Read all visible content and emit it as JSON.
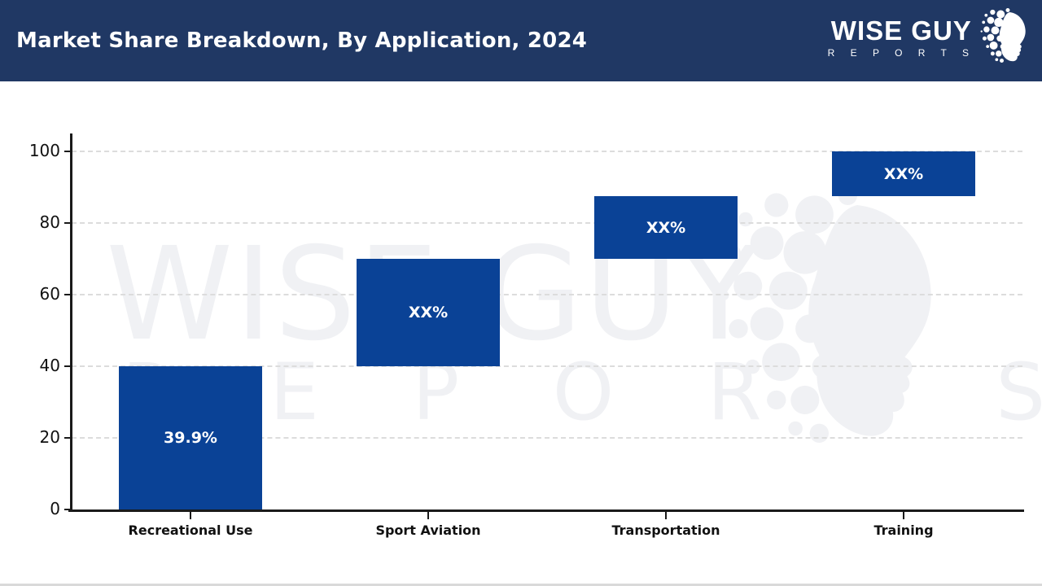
{
  "header": {
    "title": "Market Share Breakdown, By Application, 2024",
    "logo": {
      "name": "Wise Guy Reports",
      "line1": "WISE GUY",
      "line2": "R E P O R T S"
    }
  },
  "watermark": {
    "line1": "WISE GUY",
    "line2": "R E P O R T S"
  },
  "chart_data": {
    "type": "bar",
    "variant": "waterfall",
    "title": "Market Share Breakdown, By Application, 2024",
    "categories": [
      "Recreational Use",
      "Sport Aviation",
      "Transportation",
      "Training"
    ],
    "segments": [
      {
        "category": "Recreational Use",
        "start": 0,
        "end": 39.9,
        "label": "39.9%"
      },
      {
        "category": "Sport Aviation",
        "start": 40,
        "end": 70,
        "label": "XX%"
      },
      {
        "category": "Transportation",
        "start": 70,
        "end": 87.5,
        "label": "XX%"
      },
      {
        "category": "Training",
        "start": 87.5,
        "end": 100,
        "label": "XX%"
      }
    ],
    "xlabel": "",
    "ylabel": "",
    "y_ticks": [
      0,
      20,
      40,
      60,
      80,
      100
    ],
    "ylim": [
      0,
      105
    ],
    "grid": "horizontal-dashed",
    "legend": "none"
  },
  "colors": {
    "header_bg": "#203864",
    "bar_fill": "#0a4296",
    "bar_label_text": "#ffffff",
    "axis": "#1a1a1a",
    "gridline": "#dcdcdc",
    "watermark": "#f0f1f4",
    "title_text": "#ffffff"
  }
}
